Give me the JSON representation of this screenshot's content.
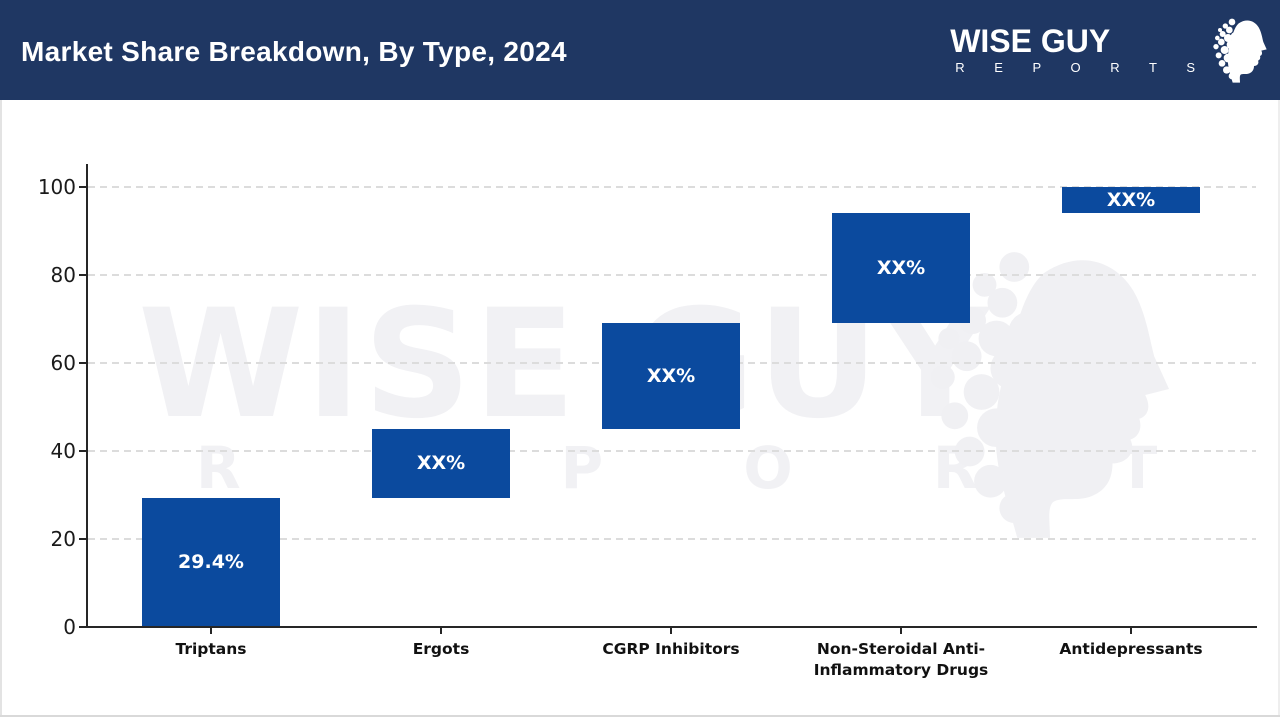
{
  "header": {
    "title": "Market Share Breakdown, By Type, 2024",
    "logo": {
      "name_line": "WISE GUY",
      "reports_line": "R E P O R T S"
    }
  },
  "watermark": {
    "name_line": "WISE GUY",
    "reports_line": "R E P O R T S"
  },
  "colors": {
    "header_bg": "#1f3763",
    "bar_blue": "#0b4a9e",
    "bar_label_white": "#ffffff",
    "watermark_gray": "#f0f0f3",
    "grid_gray": "#dcdcdc",
    "axis_dark": "#262626",
    "text_dark": "#1a1a1a"
  },
  "chart_data": {
    "type": "bar",
    "subtype": "floating-waterfall",
    "title": "Market Share Breakdown, By Type, 2024",
    "xlabel": "",
    "ylabel": "",
    "categories": [
      "Triptans",
      "Ergots",
      "CGRP Inhibitors",
      "Non-Steroidal Anti-Inflammatory Drugs",
      "Antidepressants"
    ],
    "segments": [
      {
        "category": "Triptans",
        "start": 0,
        "end": 29.4,
        "label": "29.4%"
      },
      {
        "category": "Ergots",
        "start": 29.4,
        "end": 45.0,
        "label": "XX%"
      },
      {
        "category": "CGRP Inhibitors",
        "start": 45.0,
        "end": 69.0,
        "label": "XX%"
      },
      {
        "category": "Non-Steroidal Anti-Inflammatory Drugs",
        "start": 69.0,
        "end": 94.0,
        "label": "XX%"
      },
      {
        "category": "Antidepressants",
        "start": 94.0,
        "end": 100.0,
        "label": "XX%"
      }
    ],
    "y_ticks": [
      0,
      20,
      40,
      60,
      80,
      100
    ],
    "ylim": [
      0,
      105
    ],
    "grid": "horizontal-dashed",
    "legend": "none"
  }
}
